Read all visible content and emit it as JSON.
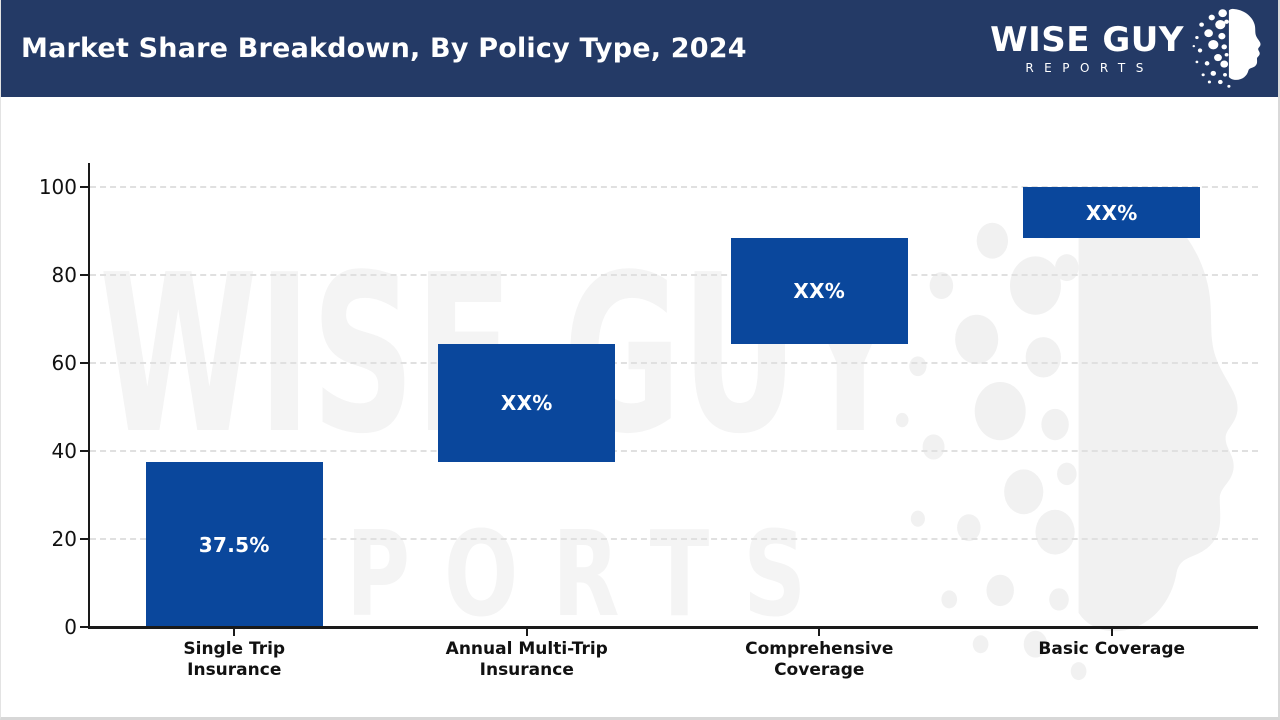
{
  "header": {
    "title": "Market Share Breakdown, By Policy Type, 2024",
    "bg_color": "#243A66",
    "logo": {
      "word": "WISE GUY",
      "sub": "REPORTS"
    }
  },
  "watermark": {
    "line1": "WISE GUY",
    "line2": "REPORTS"
  },
  "chart_data": {
    "type": "bar",
    "subtype": "floating-waterfall",
    "title": "Market Share Breakdown, By Policy Type, 2024",
    "xlabel": "",
    "ylabel": "",
    "ylim": [
      0,
      100
    ],
    "yticks": [
      0,
      20,
      40,
      60,
      80,
      100
    ],
    "grid": {
      "axis": "y",
      "style": "dashed",
      "color": "#E0E0E0"
    },
    "legend": "none",
    "categories": [
      "Single Trip\nInsurance",
      "Annual Multi-Trip\nInsurance",
      "Comprehensive\nCoverage",
      "Basic Coverage"
    ],
    "bars": [
      {
        "label": "37.5%",
        "start": 0,
        "end": 37.5,
        "value_est": 37.5
      },
      {
        "label": "XX%",
        "start": 37.5,
        "end": 64.3,
        "value_est": 26.8
      },
      {
        "label": "XX%",
        "start": 64.3,
        "end": 88.4,
        "value_est": 24.1
      },
      {
        "label": "XX%",
        "start": 88.4,
        "end": 100,
        "value_est": 11.6
      }
    ],
    "bar_color": "#0A479C",
    "axis_color": "#1A1A1A",
    "label_color": "#FFFFFF",
    "tick_text_color": "#111111"
  }
}
